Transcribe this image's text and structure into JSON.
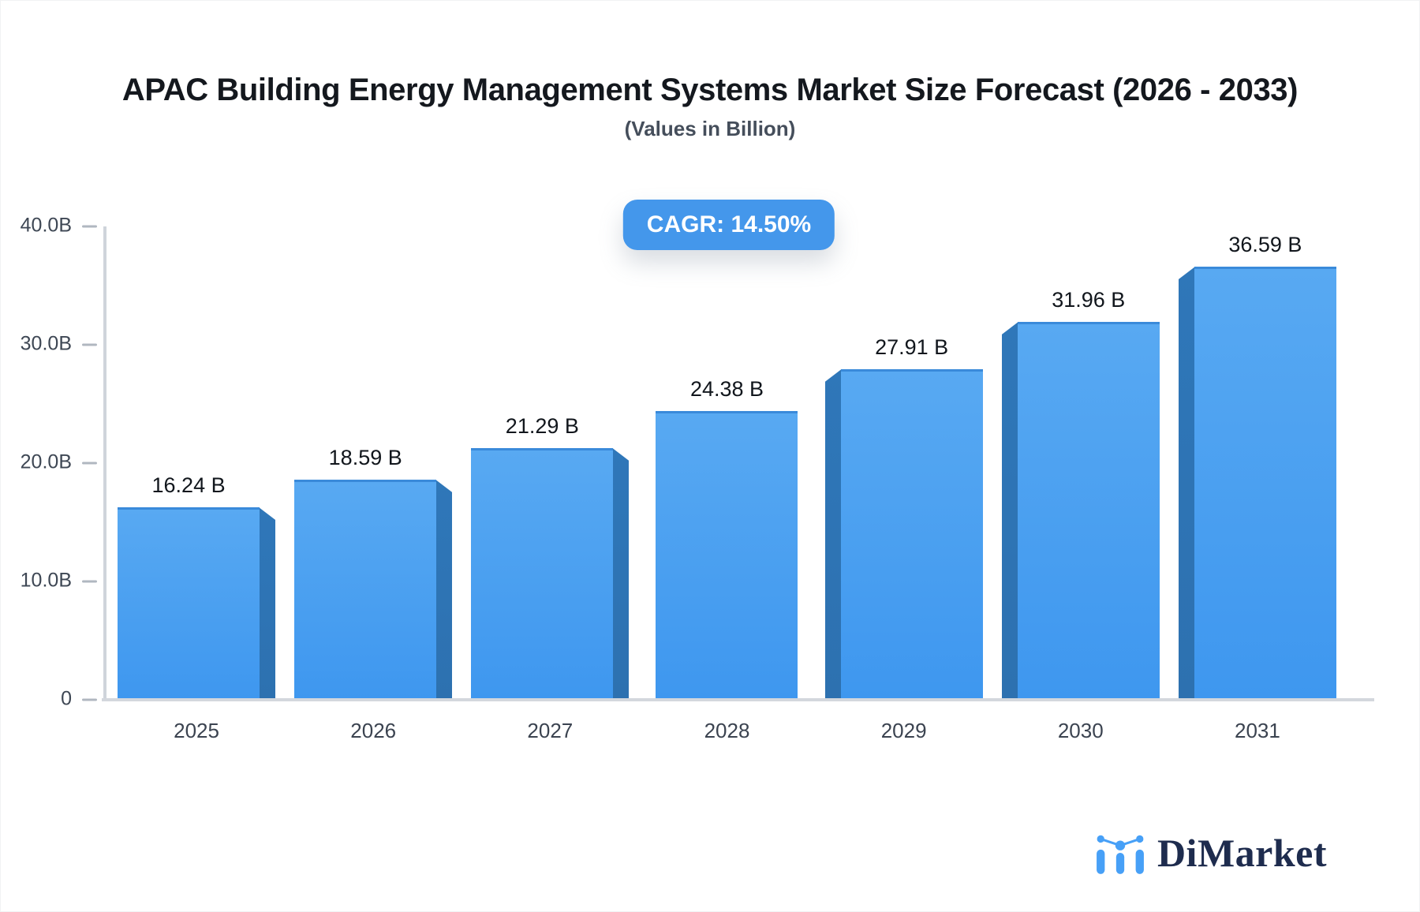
{
  "header": {
    "title": "APAC Building Energy Management Systems Market Size Forecast (2026 - 2033)",
    "subtitle": "(Values in Billion)",
    "cagr_label": "CAGR: 14.50%"
  },
  "chart_data": {
    "type": "bar",
    "title": "APAC Building Energy Management Systems Market Size Forecast (2026 - 2033)",
    "subtitle": "(Values in Billion)",
    "annotation": "CAGR: 14.50%",
    "categories": [
      "2025",
      "2026",
      "2027",
      "2028",
      "2029",
      "2030",
      "2031"
    ],
    "values": [
      16.24,
      18.59,
      21.29,
      24.38,
      27.91,
      31.96,
      36.59
    ],
    "value_labels": [
      "16.24 B",
      "18.59 B",
      "21.29 B",
      "24.38 B",
      "27.91 B",
      "31.96 B",
      "36.59 B"
    ],
    "xlabel": "",
    "ylabel": "",
    "ylim": [
      0,
      40
    ],
    "y_ticks": [
      {
        "label": "0",
        "value": 0
      },
      {
        "label": "10.0B",
        "value": 10
      },
      {
        "label": "20.0B",
        "value": 20
      },
      {
        "label": "30.0B",
        "value": 30
      },
      {
        "label": "40.0B",
        "value": 40
      }
    ],
    "grid": false,
    "legend": "none",
    "bar_style": "3d-perspective",
    "colors": {
      "bar_face_top": "#58a9f2",
      "bar_face_bottom": "#3e97ef",
      "bar_side": "#2e74b5",
      "bar_top_edge": "#3a8ada",
      "badge_background": "#4497eb",
      "badge_text": "#ffffff",
      "axis_text": "#3e4754",
      "baseline": "#d3d7dd",
      "title_text": "#14181e"
    }
  },
  "footer": {
    "brand": "DiMarket",
    "logo_navy": "#1e2c4e",
    "logo_blue": "#47a0f7"
  }
}
